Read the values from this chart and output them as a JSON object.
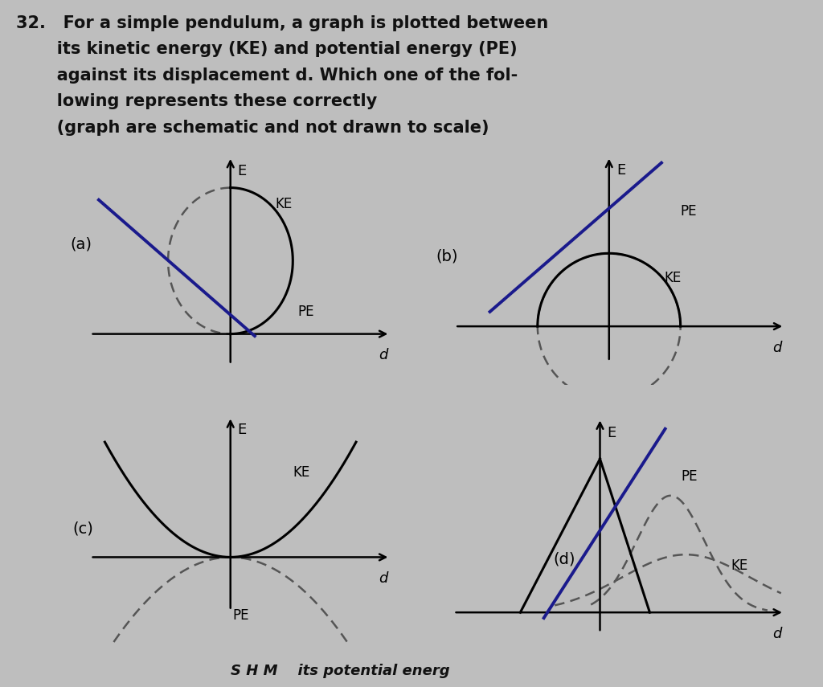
{
  "bg_color": "#bebebe",
  "text_color": "#111111",
  "dark_blue": "#1a1a8c",
  "black": "#000000",
  "gray_dashed": "#555555",
  "title_lines": [
    "32.   For a simple pendulum, a graph is plotted between",
    "       its kinetic energy (KE) and potential energy (PE)",
    "       against its displacement d. Which one of the fol-",
    "       lowing represents these correctly",
    "       (graph are schematic and not drawn to scale)"
  ],
  "bottom_text": "S H M    its potential energ"
}
